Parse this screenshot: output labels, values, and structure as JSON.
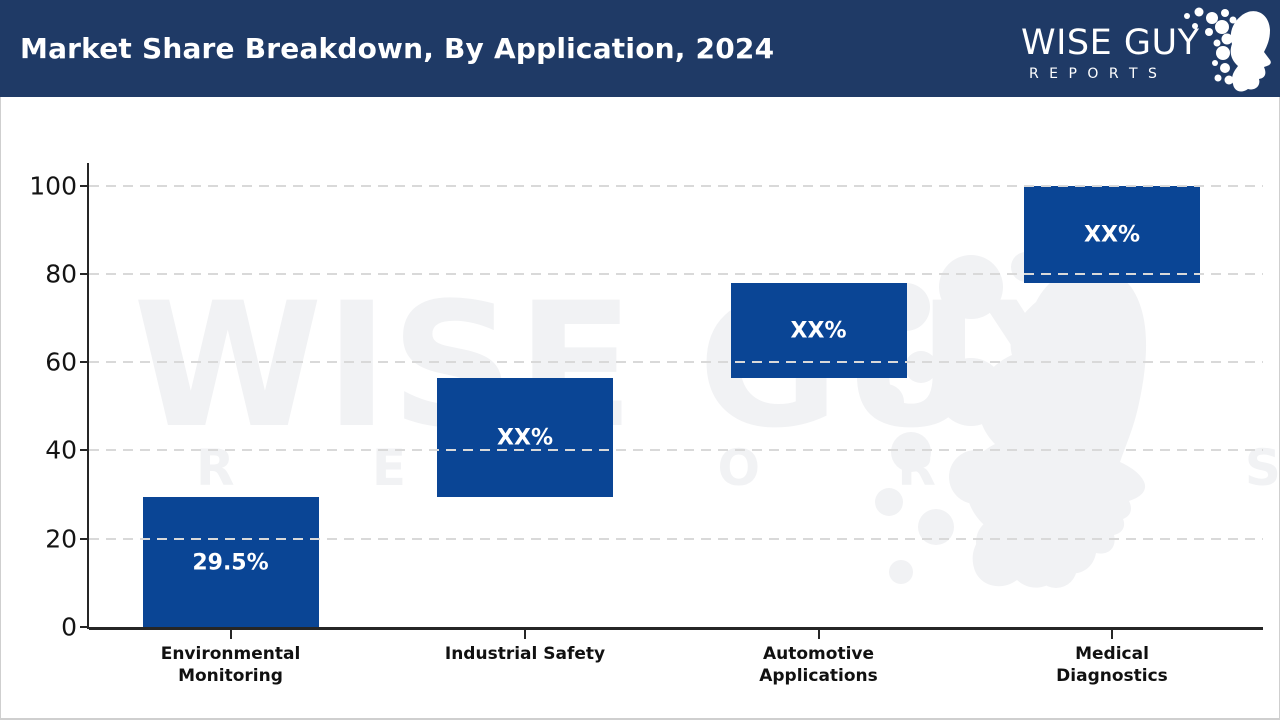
{
  "header": {
    "title": "Market Share Breakdown, By Application, 2024"
  },
  "brand": {
    "name": "WISE GUY",
    "sub": "R E P O R T S"
  },
  "watermark": {
    "name": "WISE GUY",
    "sub": "R E P O R T S"
  },
  "colors": {
    "header_bg": "#1f3a66",
    "bar": "#0a4595",
    "grid": "#d9d9d9",
    "axis": "#262626",
    "tick_text": "#141414",
    "value_label_text": "#ffffff",
    "watermark": "#f1f2f4"
  },
  "chart_data": {
    "type": "bar",
    "subtype": "waterfall",
    "title": "Market Share Breakdown, By Application, 2024",
    "categories": [
      "Environmental Monitoring",
      "Industrial Safety",
      "Automotive Applications",
      "Medical Diagnostics"
    ],
    "category_label_lines": [
      [
        "Environmental",
        "Monitoring"
      ],
      [
        "Industrial Safety"
      ],
      [
        "Automotive",
        "Applications"
      ],
      [
        "Medical",
        "Diagnostics"
      ]
    ],
    "segments": [
      {
        "category": "Environmental Monitoring",
        "start": 0,
        "end": 29.5,
        "label": "29.5%"
      },
      {
        "category": "Industrial Safety",
        "start": 29.5,
        "end": 56.5,
        "label": "XX%"
      },
      {
        "category": "Automotive Applications",
        "start": 56.5,
        "end": 78,
        "label": "XX%"
      },
      {
        "category": "Medical Diagnostics",
        "start": 78,
        "end": 100,
        "label": "XX%"
      }
    ],
    "ylim": [
      0,
      100
    ],
    "yticks": [
      0,
      20,
      40,
      60,
      80,
      100
    ],
    "xlabel": "",
    "ylabel": "",
    "grid": "horizontal-dashed",
    "legend": null
  }
}
